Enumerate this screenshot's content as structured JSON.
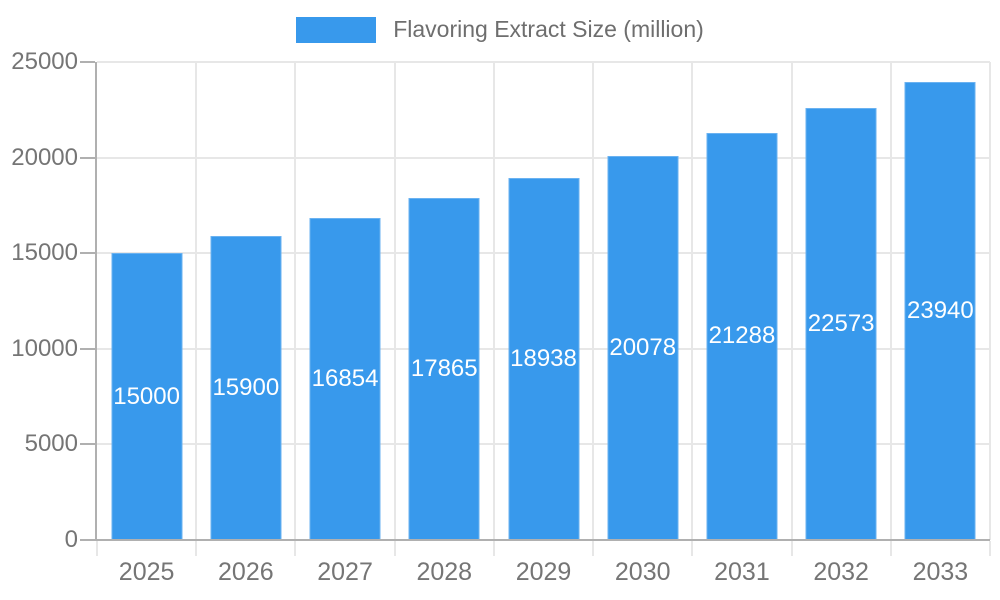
{
  "chart_data": {
    "type": "bar",
    "title": "Flavoring Extract Size (million)",
    "legend": {
      "position": "top-center",
      "entries": [
        {
          "label": "Flavoring Extract Size (million)",
          "color": "#3899ec"
        }
      ]
    },
    "categories": [
      "2025",
      "2026",
      "2027",
      "2028",
      "2029",
      "2030",
      "2031",
      "2032",
      "2033"
    ],
    "values": [
      15000,
      15900,
      16854,
      17865,
      18938,
      20078,
      21288,
      22573,
      23940
    ],
    "data_labels_shown": true,
    "xlabel": "",
    "ylabel": "",
    "ylim": [
      0,
      25000
    ],
    "yticks": [
      0,
      5000,
      10000,
      15000,
      20000,
      25000
    ],
    "grid": true,
    "colors": {
      "bar": "#3899ec",
      "bar_label": "#ffffff",
      "gridline": "#e7e7e7",
      "axis_line": "#b0b0b0",
      "tick_label": "#757575",
      "legend_text": "#6e6e6e",
      "background": "#ffffff"
    }
  }
}
